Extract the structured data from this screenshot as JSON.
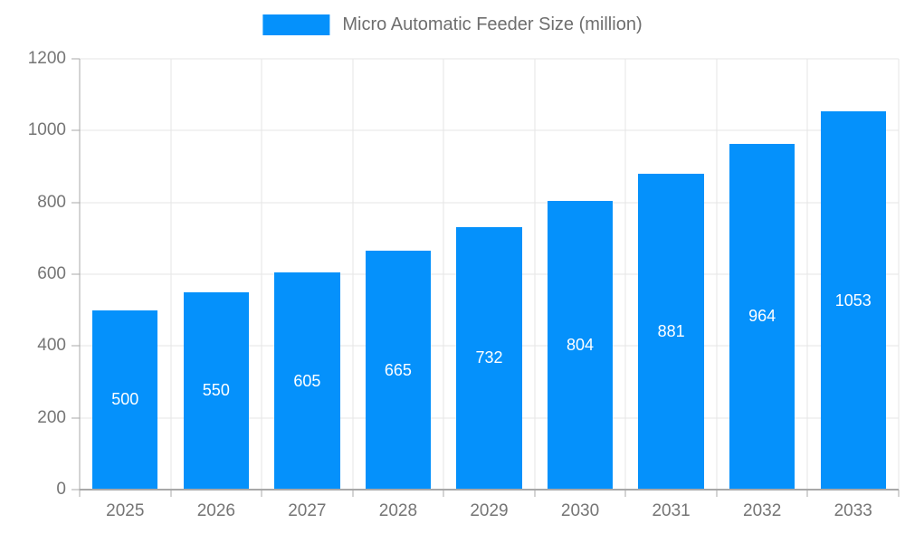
{
  "legend": {
    "label": "Micro Automatic Feeder Size (million)"
  },
  "colors": {
    "bar": "#0591fb",
    "grid": "#e6e6e6",
    "axis": "#a8a8a8",
    "tick_label": "#757575",
    "legend_text": "#6e6e6e",
    "bar_label_text": "#ffffff"
  },
  "chart_data": {
    "type": "bar",
    "title": "Micro Automatic Feeder Size (million)",
    "categories": [
      "2025",
      "2026",
      "2027",
      "2028",
      "2029",
      "2030",
      "2031",
      "2032",
      "2033"
    ],
    "values": [
      500,
      550,
      605,
      665,
      732,
      804,
      881,
      964,
      1053
    ],
    "series_name": "Micro Automatic Feeder Size (million)",
    "xlabel": "",
    "ylabel": "",
    "ylim": [
      0,
      1200
    ],
    "y_ticks": [
      0,
      200,
      400,
      600,
      800,
      1000,
      1200
    ],
    "grid": true,
    "legend_position": "top-center",
    "bar_label_position": "inside-center"
  }
}
